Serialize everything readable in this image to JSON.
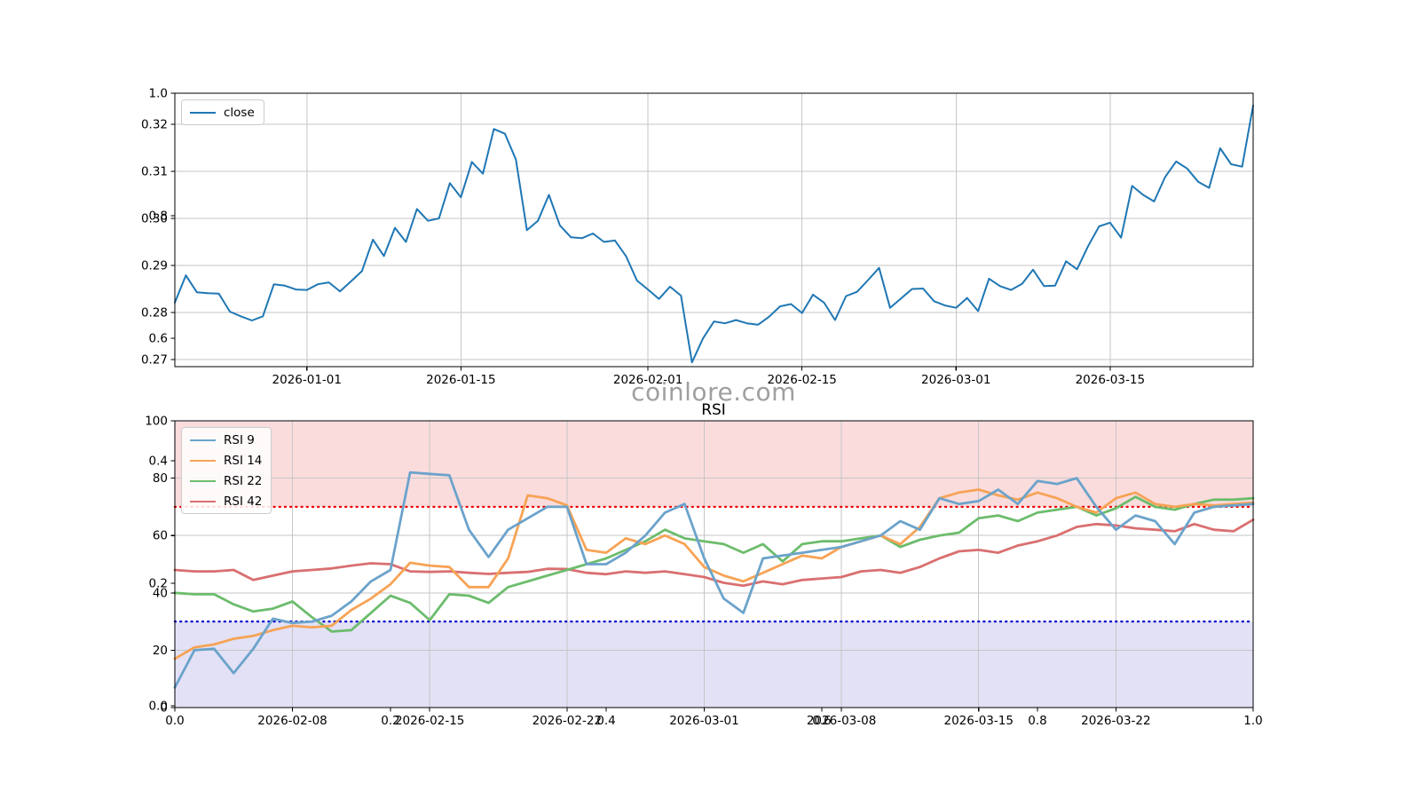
{
  "watermark": {
    "text": "coinlore.com"
  },
  "rsi_title": "RSI",
  "colors": {
    "close_line": "#1f77b4",
    "rsi9": "#6ba3cb",
    "rsi14": "#f7a355",
    "rsi22": "#6cbc6c",
    "rsi42": "#d96f70",
    "overbought_fill": "#fadcdd",
    "oversold_fill": "#e2e1f6",
    "overbought_line": "#ee0000",
    "oversold_line": "#0000cd",
    "grid": "#c6c6c6",
    "spine": "#000000"
  },
  "top_chart": {
    "legend": [
      {
        "label": "close",
        "color": "#1f77b4"
      }
    ],
    "yticks": [
      {
        "label": "0.27",
        "value": 0.27
      },
      {
        "label": "0.28",
        "value": 0.28
      },
      {
        "label": "0.29",
        "value": 0.29
      },
      {
        "label": "0.30",
        "value": 0.3
      },
      {
        "label": "0.31",
        "value": 0.31
      },
      {
        "label": "0.32",
        "value": 0.32
      }
    ],
    "xticks": [
      {
        "label": "2026-01-01",
        "index": 12
      },
      {
        "label": "2026-01-15",
        "index": 26
      },
      {
        "label": "2026-02-01",
        "index": 43
      },
      {
        "label": "2026-02-15",
        "index": 57
      },
      {
        "label": "2026-03-01",
        "index": 71
      },
      {
        "label": "2026-03-15",
        "index": 85
      }
    ],
    "ylim": [
      0.2685,
      0.3266
    ]
  },
  "figure_axis": {
    "yticks": [
      "1.0",
      "0.8",
      "0.6",
      "0.4",
      "0.2",
      "0.0"
    ],
    "xticks": [
      "0.0",
      "0.2",
      "0.4",
      "0.6",
      "0.8",
      "1.0"
    ]
  },
  "rsi_chart": {
    "legend": [
      {
        "label": "RSI 9",
        "color": "#6ba3cb"
      },
      {
        "label": "RSI 14",
        "color": "#f7a355"
      },
      {
        "label": "RSI 22",
        "color": "#6cbc6c"
      },
      {
        "label": "RSI 42",
        "color": "#d96f70"
      }
    ],
    "yticks": [
      {
        "label": "0",
        "value": 0
      },
      {
        "label": "20",
        "value": 20
      },
      {
        "label": "40",
        "value": 40
      },
      {
        "label": "60",
        "value": 60
      },
      {
        "label": "80",
        "value": 80
      },
      {
        "label": "100",
        "value": 100
      }
    ],
    "xticks": [
      {
        "label": "2026-02-08",
        "index": 6
      },
      {
        "label": "2026-02-15",
        "index": 13
      },
      {
        "label": "2026-02-22",
        "index": 20
      },
      {
        "label": "2026-03-01",
        "index": 27
      },
      {
        "label": "2026-03-08",
        "index": 34
      },
      {
        "label": "2026-03-15",
        "index": 41
      },
      {
        "label": "2026-03-22",
        "index": 48
      }
    ],
    "overbought": 70,
    "oversold": 30,
    "ylim": [
      0,
      100
    ]
  },
  "chart_data": [
    {
      "type": "line",
      "name": "close",
      "x_start": "2025-12-20",
      "x_end": "2026-03-28",
      "freq": "daily",
      "ylim": [
        0.2685,
        0.3266
      ],
      "values": [
        0.2821,
        0.2879,
        0.2843,
        0.2841,
        0.284,
        0.2802,
        0.2792,
        0.2783,
        0.2792,
        0.286,
        0.2857,
        0.2849,
        0.2848,
        0.286,
        0.2864,
        0.2845,
        0.2866,
        0.2888,
        0.2955,
        0.292,
        0.298,
        0.295,
        0.302,
        0.2995,
        0.3,
        0.3075,
        0.3045,
        0.312,
        0.3095,
        0.319,
        0.318,
        0.3125,
        0.2975,
        0.2995,
        0.305,
        0.2985,
        0.296,
        0.2958,
        0.2968,
        0.295,
        0.2953,
        0.292,
        0.2868,
        0.2849,
        0.2829,
        0.2855,
        0.2836,
        0.2694,
        0.2745,
        0.2781,
        0.2777,
        0.2784,
        0.2777,
        0.2774,
        0.2791,
        0.2813,
        0.2818,
        0.2799,
        0.2838,
        0.2821,
        0.2784,
        0.2835,
        0.2844,
        0.2869,
        0.2895,
        0.281,
        0.283,
        0.285,
        0.2851,
        0.2824,
        0.2815,
        0.281,
        0.2831,
        0.2803,
        0.2872,
        0.2856,
        0.2848,
        0.2861,
        0.2891,
        0.2856,
        0.2857,
        0.2909,
        0.2892,
        0.2941,
        0.2983,
        0.2991,
        0.2959,
        0.3069,
        0.305,
        0.3036,
        0.3088,
        0.3121,
        0.3106,
        0.3078,
        0.3065,
        0.3149,
        0.3115,
        0.311,
        0.324
      ]
    },
    {
      "type": "line",
      "title": "RSI",
      "x_start": "2026-02-02",
      "x_end": "2026-03-29",
      "freq": "daily",
      "ylim": [
        0,
        100
      ],
      "thresholds": {
        "overbought": 70,
        "oversold": 30
      },
      "series": [
        {
          "name": "RSI 9",
          "values": [
            7,
            20,
            20.5,
            12,
            20.5,
            31,
            29.5,
            30,
            32,
            37,
            44,
            48,
            82,
            81.5,
            81,
            62,
            52.5,
            62,
            66,
            70,
            70,
            50,
            50,
            54,
            60,
            68,
            71,
            52,
            38,
            33,
            52,
            53,
            54,
            55,
            56,
            58,
            60,
            65,
            62,
            73,
            71,
            72,
            76,
            71,
            79,
            78,
            80,
            70,
            62,
            67,
            65,
            57,
            68,
            70,
            70.5,
            71
          ]
        },
        {
          "name": "RSI 14",
          "values": [
            17,
            21,
            22,
            24,
            25,
            27,
            28.5,
            28,
            28.5,
            34,
            38,
            43,
            50.5,
            49.5,
            49,
            42,
            42,
            52,
            74,
            73,
            70.5,
            55,
            54,
            59,
            57,
            60,
            57,
            49,
            46,
            44,
            47,
            50,
            53,
            52,
            56,
            58,
            60,
            57,
            63,
            73,
            75,
            76,
            74,
            72.5,
            75,
            73,
            70,
            68,
            73,
            75,
            71,
            70,
            71,
            70.5,
            71,
            71.5
          ]
        },
        {
          "name": "RSI 22",
          "values": [
            40,
            39.5,
            39.5,
            36,
            33.5,
            34.5,
            37,
            31.5,
            26.5,
            27,
            33,
            39,
            36.5,
            30.5,
            39.5,
            39,
            36.5,
            42,
            44,
            46,
            48,
            50,
            52,
            55,
            58,
            62,
            59,
            58,
            57,
            54,
            57,
            51,
            57,
            58,
            58,
            59,
            60,
            56,
            58.5,
            60,
            61,
            66,
            67,
            65,
            68,
            69,
            70,
            67,
            69.5,
            73.5,
            70,
            69,
            71,
            72.5,
            72.5,
            73
          ]
        },
        {
          "name": "RSI 42",
          "values": [
            48,
            47.5,
            47.5,
            48,
            44.5,
            46,
            47.5,
            48,
            48.5,
            49.5,
            50.3,
            50,
            47.5,
            47.3,
            47.5,
            47,
            46.6,
            47,
            47.3,
            48.4,
            48.3,
            47,
            46.5,
            47.5,
            47,
            47.5,
            46.5,
            45.5,
            43.5,
            42.5,
            44,
            43,
            44.5,
            45,
            45.5,
            47.5,
            48,
            47,
            49,
            52,
            54.5,
            55,
            54,
            56.5,
            58,
            60,
            63,
            64,
            63.5,
            62.5,
            62,
            61.5,
            64,
            62,
            61.5,
            65.5
          ]
        }
      ]
    }
  ]
}
